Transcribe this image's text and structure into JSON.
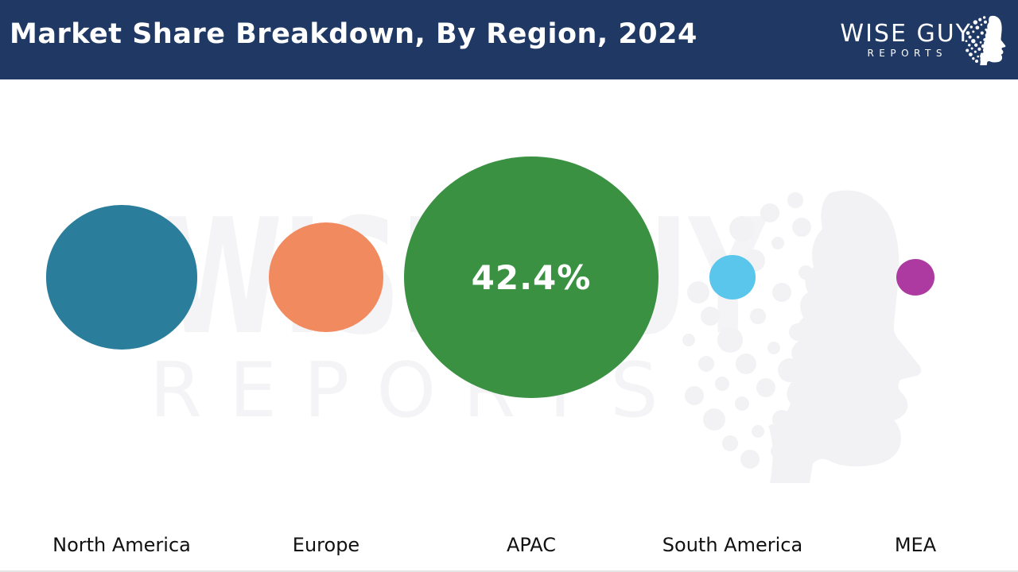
{
  "header": {
    "title": "Market Share Breakdown, By Region, 2024",
    "logo": {
      "line1": "WISE GUY",
      "line2": "REPORTS"
    }
  },
  "watermark": {
    "line1": "WISE GUY",
    "line2": "REPORTS"
  },
  "chart_data": {
    "type": "bubble",
    "title": "Market Share Breakdown, By Region, 2024",
    "categories": [
      "North America",
      "Europe",
      "APAC",
      "South America",
      "MEA"
    ],
    "values": [
      25.3,
      19.2,
      42.4,
      7.7,
      6.4
    ],
    "data_labels": [
      "",
      "",
      "42.4%",
      "",
      ""
    ],
    "colors": [
      "#2a7e9c",
      "#f28a60",
      "#3a9142",
      "#5ac6ec",
      "#ad3aa0"
    ],
    "value_unit": "%",
    "layout_hint": "single row of bubbles, radius proportional to value; only APAC value labeled; category names below each bubble",
    "legend_position": "none"
  },
  "colors": {
    "header_bg": "#1f3864",
    "title_text": "#ffffff",
    "watermark": "#f4f4f6",
    "category_label_text": "#111111",
    "bubble_value_text": "#ffffff",
    "bottom_rule": "#e5e5e5"
  }
}
